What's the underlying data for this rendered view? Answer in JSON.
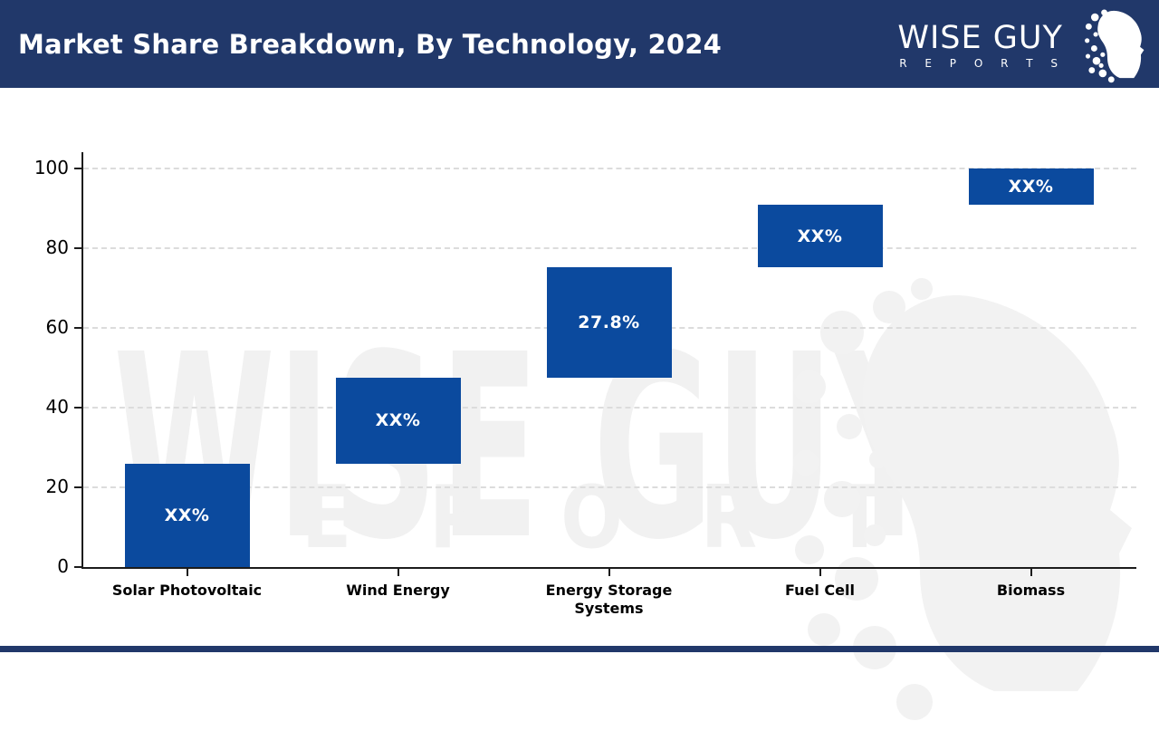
{
  "header": {
    "title": "Market Share Breakdown, By Technology, 2024",
    "logo_line1": "WISE GUY",
    "logo_line2": "R E P O R T S",
    "bg_color": "#21386a"
  },
  "watermark": {
    "line1": "WISE GUY",
    "line2": "R E P O R T S"
  },
  "chart_data": {
    "type": "bar",
    "subtype": "waterfall",
    "title": "Market Share Breakdown, By Technology, 2024",
    "categories": [
      "Solar Photovoltaic",
      "Wind Energy",
      "Energy Storage Systems",
      "Fuel Cell",
      "Biomass"
    ],
    "bars": [
      {
        "category": "Solar Photovoltaic",
        "start": 0,
        "end": 26,
        "label": "XX%"
      },
      {
        "category": "Wind Energy",
        "start": 26,
        "end": 47.5,
        "label": "XX%"
      },
      {
        "category": "Energy Storage Systems",
        "start": 47.5,
        "end": 75.3,
        "label": "27.8%"
      },
      {
        "category": "Fuel Cell",
        "start": 75.3,
        "end": 90.8,
        "label": "XX%"
      },
      {
        "category": "Biomass",
        "start": 90.8,
        "end": 100,
        "label": "XX%"
      }
    ],
    "xlabel": "",
    "ylabel": "",
    "ylim": [
      0,
      100
    ],
    "yticks": [
      0,
      20,
      40,
      60,
      80,
      100
    ],
    "grid": "horizontal-dashed",
    "legend": "none",
    "bar_color": "#0b4a9e",
    "bar_label_color": "#ffffff",
    "axis_color": "#1c1c1c"
  },
  "footer": {
    "bar_color": "#21386a"
  }
}
